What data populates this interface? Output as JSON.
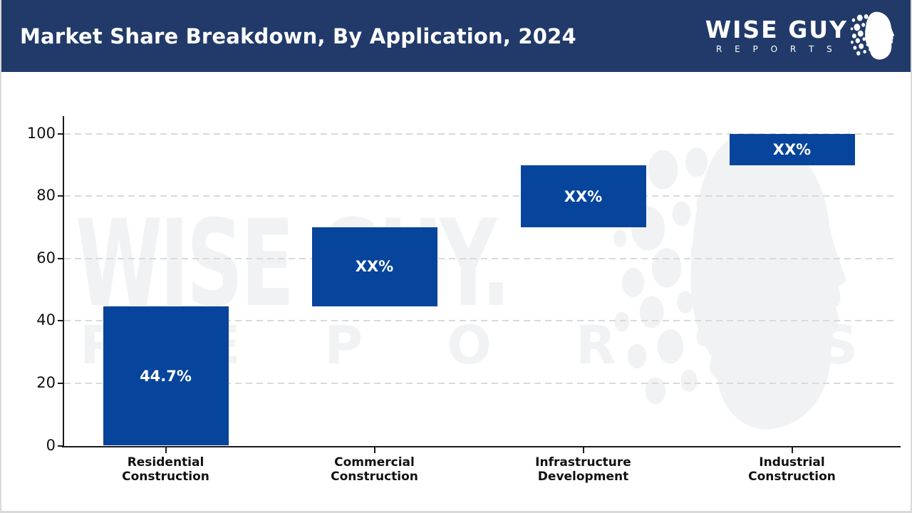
{
  "header": {
    "bg_color": "#213a69",
    "title": "Market Share Breakdown, By Application, 2024",
    "logo": {
      "wordmark": "WISE GUY",
      "subtext": "R E P O R T S"
    }
  },
  "watermark": {
    "word1": "WISE GUY.",
    "word2": "R E P O R T S",
    "color": "#f1f2f4"
  },
  "chart_data": {
    "type": "bar",
    "subtype": "waterfall",
    "title": "Market Share Breakdown, By Application, 2024",
    "xlabel": "",
    "ylabel": "",
    "ylim": [
      0,
      105
    ],
    "yticks": [
      0,
      20,
      40,
      60,
      80,
      100
    ],
    "grid": {
      "horizontal": true,
      "style": "dashed",
      "color": "#d9d9d9"
    },
    "bar_color": "#07449b",
    "label_color": "#ffffff",
    "axis_color": "#1a1a1a",
    "categories": [
      [
        "Residential",
        "Construction"
      ],
      [
        "Commercial",
        "Construction"
      ],
      [
        "Infrastructure",
        "Development"
      ],
      [
        "Industrial",
        "Construction"
      ]
    ],
    "segments": [
      {
        "category": "Residential Construction",
        "start": 0,
        "end": 44.7,
        "label": "44.7%"
      },
      {
        "category": "Commercial Construction",
        "start": 44.7,
        "end": 70,
        "label": "XX%"
      },
      {
        "category": "Infrastructure Development",
        "start": 70,
        "end": 89.8,
        "label": "XX%"
      },
      {
        "category": "Industrial Construction",
        "start": 89.8,
        "end": 100,
        "label": "XX%"
      }
    ]
  }
}
